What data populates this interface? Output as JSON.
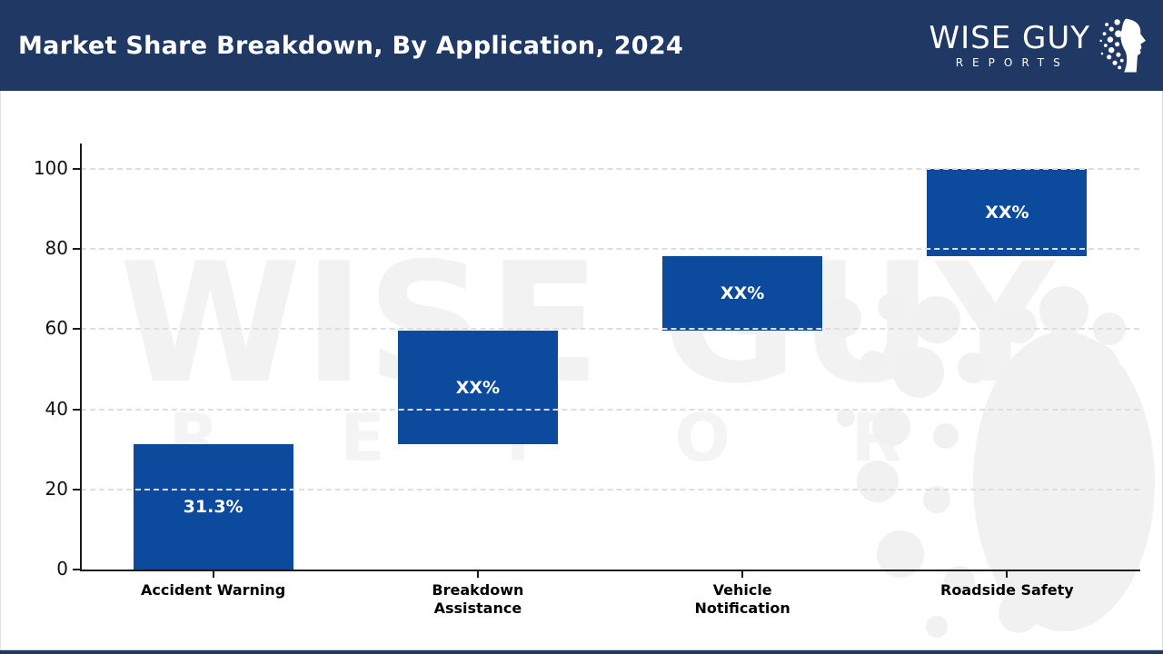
{
  "header": {
    "title": "Market Share Breakdown, By Application, 2024",
    "logo_line1": "WISE GUY",
    "logo_line2": "REPORTS"
  },
  "watermark": {
    "line1": "WISE GUY",
    "line2": "R E P O R T S"
  },
  "chart_data": {
    "type": "bar",
    "subtype": "floating-waterfall",
    "title": "Market Share Breakdown, By Application, 2024",
    "categories": [
      {
        "lines": [
          "Accident Warning"
        ]
      },
      {
        "lines": [
          "Breakdown",
          "Assistance"
        ]
      },
      {
        "lines": [
          "Vehicle",
          "Notification"
        ]
      },
      {
        "lines": [
          "Roadside Safety"
        ]
      }
    ],
    "segments": [
      {
        "start": 0,
        "end": 31.3,
        "label": "31.3%"
      },
      {
        "start": 31.3,
        "end": 59.6,
        "label": "XX%"
      },
      {
        "start": 59.6,
        "end": 78.2,
        "label": "XX%"
      },
      {
        "start": 78.2,
        "end": 100,
        "label": "XX%"
      }
    ],
    "xlabel": "",
    "ylabel": "",
    "ylim": [
      0,
      100
    ],
    "yticks": [
      0,
      20,
      40,
      60,
      80,
      100
    ],
    "grid": "dashed-horizontal",
    "legend": "none",
    "colors": {
      "bar": "#0c4a9e",
      "bar_label": "#ffffff",
      "axis": "#1a1a1a",
      "grid": "#dedede",
      "tick_label": "#111111",
      "category_label": "#000000",
      "header_bg": "#1f3864",
      "watermark": "#f2f2f2"
    }
  }
}
